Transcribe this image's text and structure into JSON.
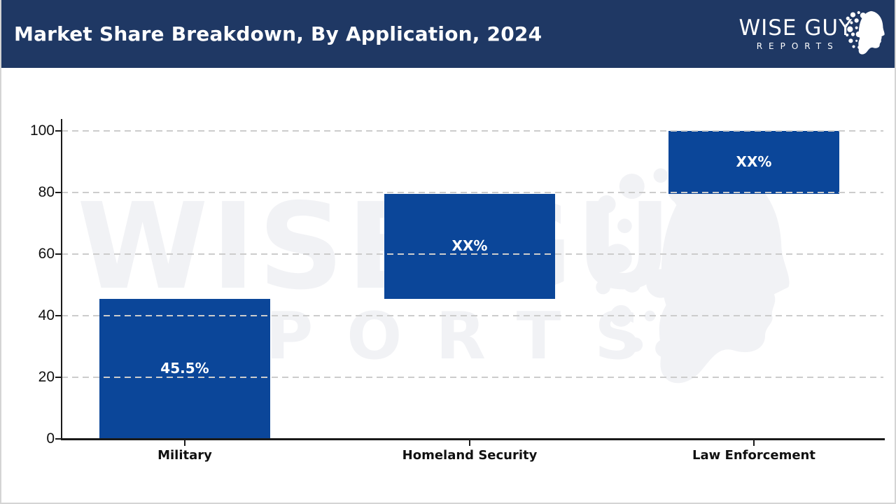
{
  "header": {
    "title": "Market Share Breakdown, By Application, 2024",
    "bg_color": "#1f3864",
    "logo": {
      "line1": "WISE GUY",
      "line2": "REPORTS"
    }
  },
  "watermark": {
    "line1": "WISE GUY",
    "line2": "REPORTS"
  },
  "chart_data": {
    "type": "bar",
    "subtype": "waterfall-stacked-breakdown",
    "title": "Market Share Breakdown, By Application, 2024",
    "categories": [
      "Military",
      "Homeland Security",
      "Law Enforcement"
    ],
    "segments": [
      {
        "category": "Military",
        "start": 0,
        "end": 45.5,
        "value": 45.5,
        "label": "45.5%"
      },
      {
        "category": "Homeland Security",
        "start": 45.5,
        "end": 79.5,
        "value": 34.0,
        "label": "XX%"
      },
      {
        "category": "Law Enforcement",
        "start": 79.5,
        "end": 100,
        "value": 20.5,
        "label": "XX%"
      }
    ],
    "ylim": [
      0,
      100
    ],
    "yticks": [
      0,
      20,
      40,
      60,
      80,
      100
    ],
    "xlabel": "",
    "ylabel": "",
    "grid": "horizontal-dashed-over-bars",
    "legend": "none",
    "bar_color": "#0b4699",
    "bar_label_color": "#ffffff",
    "axis_color": "#1a1a1a",
    "grid_color": "#cccccc"
  }
}
